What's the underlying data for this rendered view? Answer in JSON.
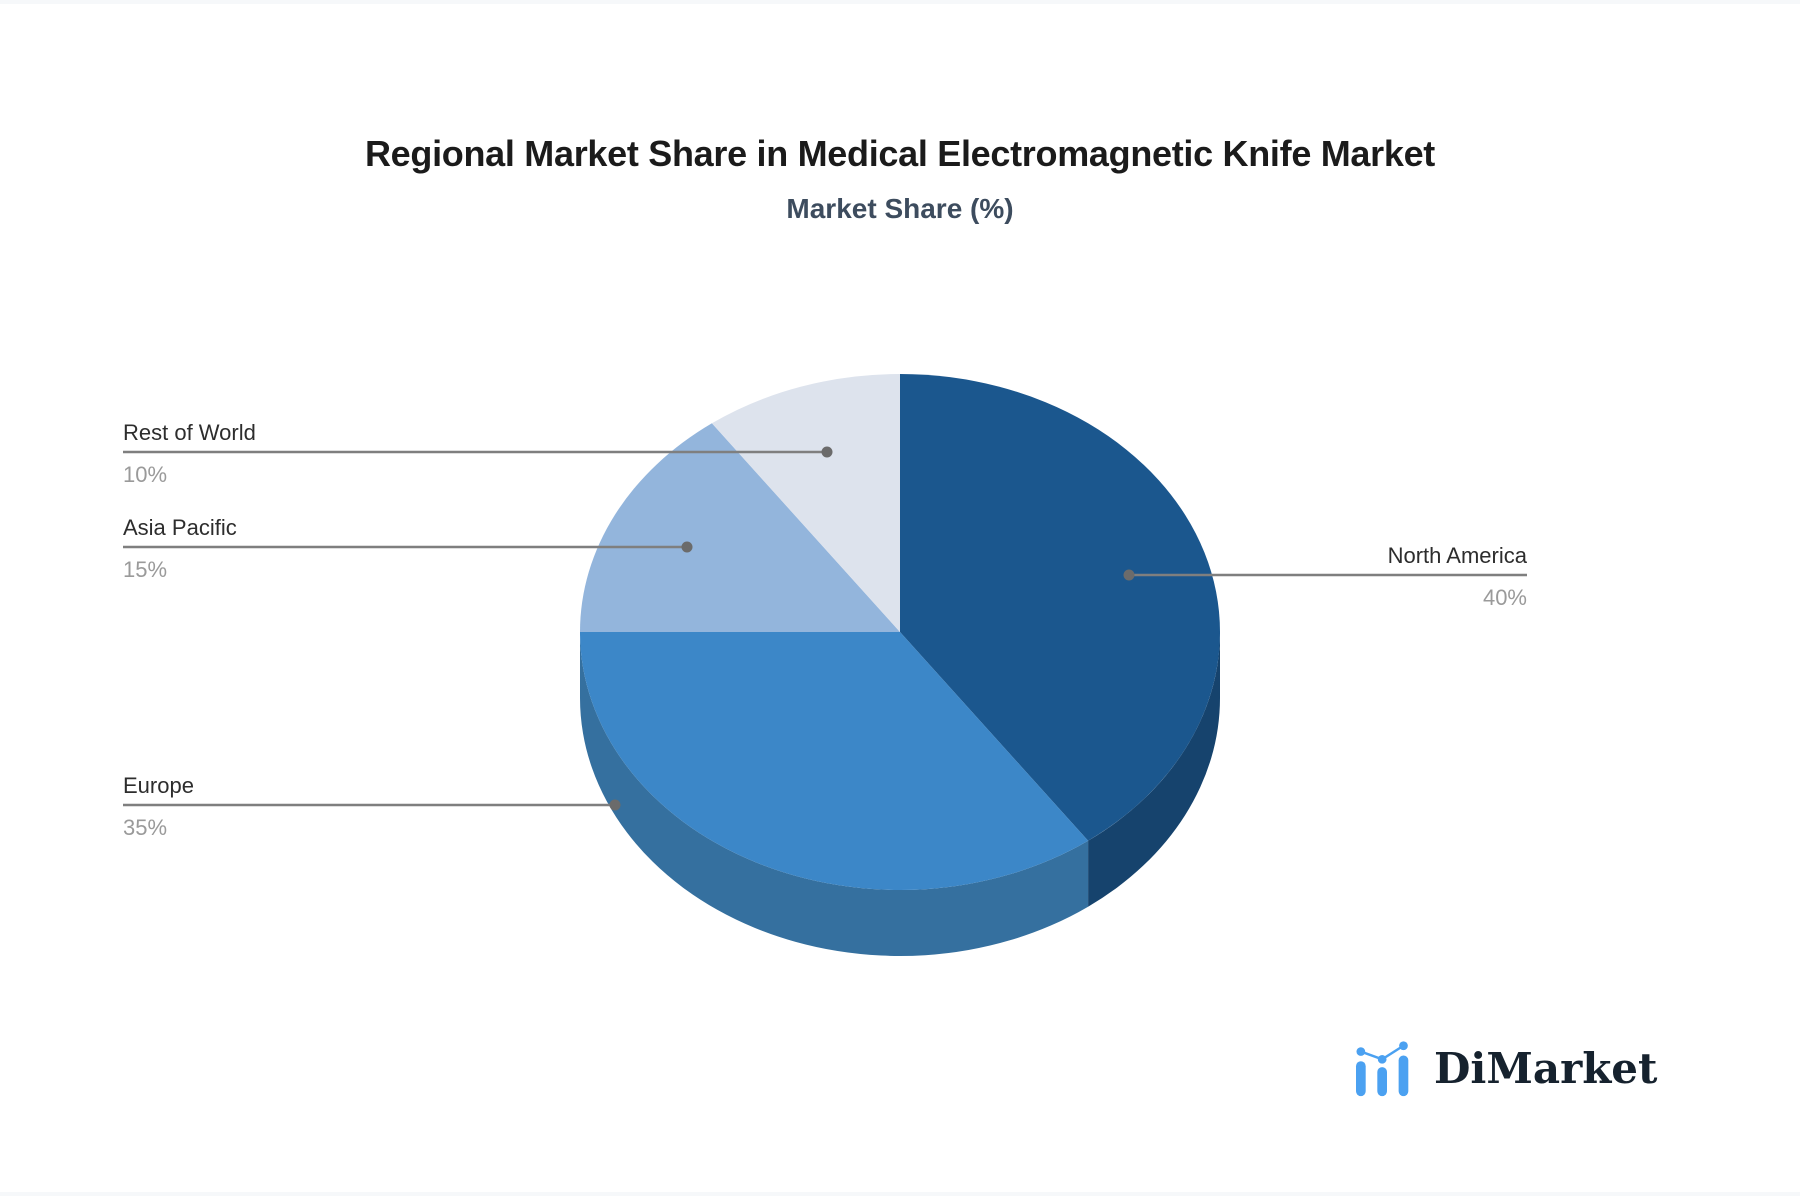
{
  "title": "Regional Market Share in Medical Electromagnetic Knife Market",
  "subtitle": "Market Share (%)",
  "chart_data": {
    "type": "pie",
    "style": "3d-pie",
    "title": "Regional Market Share in Medical Electromagnetic Knife Market",
    "subtitle": "Market Share (%)",
    "unit": "%",
    "categories": [
      "North America",
      "Europe",
      "Asia Pacific",
      "Rest of World"
    ],
    "values": [
      40,
      35,
      15,
      10
    ],
    "colors": [
      "#1b578e",
      "#3c87c8",
      "#93b5dc",
      "#dde3ed"
    ],
    "side_colors": [
      "#16436d",
      "#35709f",
      "#6d93bf",
      "#b8c4d6"
    ],
    "start_angle_deg": 0,
    "direction": "clockwise",
    "legend_position": "callout-labels"
  },
  "callouts": {
    "north_america": {
      "name": "North America",
      "pct": "40%"
    },
    "europe": {
      "name": "Europe",
      "pct": "35%"
    },
    "asia_pacific": {
      "name": "Asia Pacific",
      "pct": "15%"
    },
    "rest_of_world": {
      "name": "Rest of World",
      "pct": "10%"
    }
  },
  "logo": {
    "brand": "DiMarket"
  },
  "palette": {
    "connector_line": "#7f7f7f",
    "connector_dot": "#6b6b6b",
    "title_color": "#1b1b1b",
    "subtitle_color": "#3d4c5e",
    "label_color": "#2d2d2d",
    "pct_color": "#9a9a9a",
    "logo_icon_blue": "#4ba1f1",
    "logo_text_navy": "#16222e"
  }
}
